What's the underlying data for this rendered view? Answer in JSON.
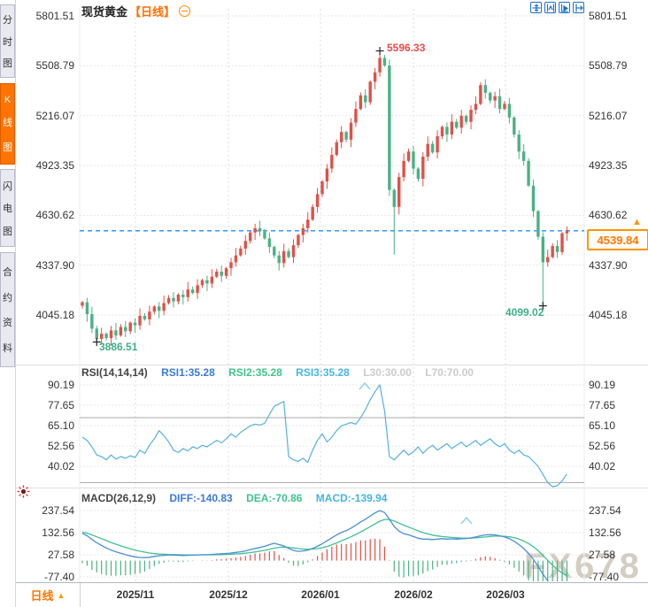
{
  "window": {
    "title_symbol": "现货黄金",
    "title_period": "【日线】"
  },
  "sidebar": {
    "tabs": [
      {
        "id": "time-chart",
        "label": "分时图",
        "active": false
      },
      {
        "id": "kline-chart",
        "label": "K线图",
        "active": true
      },
      {
        "id": "lightning-chart",
        "label": "闪电图",
        "active": false
      },
      {
        "id": "contract-info",
        "label": "合约资料",
        "active": false
      }
    ]
  },
  "toolbar": {
    "icons": [
      {
        "name": "pan-tool-icon"
      },
      {
        "name": "y-axis-scale-icon"
      },
      {
        "name": "x-axis-scale-icon"
      },
      {
        "name": "jump-to-latest-icon"
      }
    ]
  },
  "icons": {
    "up_triangle": "▲"
  },
  "price_pane": {
    "y_axis": [
      "5801.51",
      "5508.79",
      "5216.07",
      "4923.35",
      "4630.62",
      "4337.90",
      "4045.18"
    ],
    "high_annotation": "5596.33",
    "low_annotation": "4099.02",
    "early_low_annotation": "3886.51",
    "current_price": "4539.84"
  },
  "rsi_pane": {
    "label": "RSI(14,14,14)",
    "rsi1_label": "RSI1:35.28",
    "rsi2_label": "RSI2:35.28",
    "rsi3_label": "RSI3:35.28",
    "l30_label": "L30:30.00",
    "l70_label": "L70:70.00",
    "y_axis": [
      "90.19",
      "77.65",
      "65.10",
      "52.56",
      "40.02"
    ]
  },
  "macd_pane": {
    "label": "MACD(26,12,9)",
    "diff_label": "DIFF:-140.83",
    "dea_label": "DEA:-70.86",
    "macd_label": "MACD:-139.94",
    "y_axis": [
      "237.54",
      "132.56",
      "27.58",
      "-77.40"
    ]
  },
  "x_axis": {
    "period_button": "日线",
    "dates": [
      "2025/11",
      "2025/12",
      "2026/01",
      "2026/02",
      "2026/03"
    ]
  },
  "watermark": "FX678",
  "colors": {
    "accent_orange": "#ff7300",
    "up_red": "#df5148",
    "down_green": "#4bb185",
    "diff_blue": "#4a8fd4",
    "dea_green": "#3ec28f",
    "rsi_line": "#56b0e0",
    "current_line_blue": "#1f8fff",
    "annotation_red": "#e64c4c",
    "annotation_green": "#3fae87",
    "grid_h": "#e7e7e7",
    "grid_v": "#e6d9d9",
    "level_line": "#a8a8a8"
  },
  "chart_data": {
    "type": "candlestick",
    "symbol": "现货黄金",
    "period": "日线",
    "price_axis_values": [
      5801.51,
      5508.79,
      5216.07,
      4923.35,
      4630.62,
      4337.9,
      4045.18
    ],
    "x_tick_dates": [
      "2025/11",
      "2025/12",
      "2026/01",
      "2026/02",
      "2026/03"
    ],
    "current_price": 4539.84,
    "first_open": 4100,
    "closes": [
      4120,
      4050,
      3965,
      3905,
      3935,
      3910,
      3955,
      3925,
      3975,
      3950,
      4000,
      3985,
      4040,
      4020,
      4065,
      4095,
      4070,
      4115,
      4145,
      4125,
      4165,
      4150,
      4195,
      4175,
      4220,
      4250,
      4230,
      4270,
      4300,
      4275,
      4320,
      4355,
      4395,
      4435,
      4480,
      4530,
      4555,
      4535,
      4495,
      4445,
      4395,
      4350,
      4420,
      4385,
      4455,
      4515,
      4555,
      4605,
      4680,
      4755,
      4830,
      4905,
      4985,
      5060,
      5120,
      5075,
      5175,
      5255,
      5335,
      5295,
      5415,
      5470,
      5555,
      5510,
      4780,
      4680,
      4855,
      4950,
      5005,
      4905,
      4845,
      4975,
      5050,
      5000,
      5095,
      5150,
      5105,
      5180,
      5145,
      5215,
      5180,
      5250,
      5285,
      5395,
      5350,
      5305,
      5330,
      5255,
      5285,
      5205,
      5105,
      5005,
      4950,
      4805,
      4655,
      4505,
      4355,
      4385,
      4450,
      4415,
      4525,
      4539.84
    ],
    "wick_overrides": {
      "3": {
        "low": 3886.51
      },
      "62": {
        "high": 5596.33
      },
      "65": {
        "low": 4400
      },
      "96": {
        "low": 4099.02
      }
    },
    "annotations": [
      {
        "index": 3,
        "value": 3886.51,
        "type": "low"
      },
      {
        "index": 62,
        "value": 5596.33,
        "type": "high"
      },
      {
        "index": 96,
        "value": 4099.02,
        "type": "low"
      }
    ],
    "rsi": {
      "axis": [
        90.19,
        77.65,
        65.1,
        52.56,
        40.02
      ],
      "levels": [
        70,
        30
      ],
      "current": {
        "rsi1": 35.28,
        "rsi2": 35.28,
        "rsi3": 35.28
      },
      "values": [
        58,
        56,
        52,
        47,
        46,
        44,
        47,
        44.5,
        46,
        45,
        46.5,
        45.5,
        50,
        48,
        53,
        57,
        62,
        59,
        55,
        50,
        48.5,
        51,
        49.5,
        52,
        51,
        53,
        52,
        54,
        56,
        54.5,
        57,
        60,
        58,
        61,
        63,
        65,
        66,
        65.5,
        66.5,
        72,
        77,
        78.5,
        80,
        46,
        44,
        43,
        45,
        42.5,
        50,
        56,
        60,
        55,
        58,
        62,
        65,
        66,
        67,
        66,
        70,
        75,
        81,
        86,
        90.19,
        74,
        46,
        44,
        47,
        50,
        47,
        49,
        52,
        48,
        51,
        53,
        50,
        52,
        54,
        51,
        53,
        55,
        52,
        54,
        56,
        53,
        55,
        57,
        54,
        52,
        54,
        50,
        48,
        50,
        47,
        46,
        43,
        40,
        35,
        30,
        27.5,
        28,
        31,
        35.28
      ]
    },
    "macd": {
      "axis": [
        237.54,
        132.56,
        27.58,
        -77.4
      ],
      "current": {
        "diff": -140.83,
        "dea": -70.86,
        "macd": -139.94
      },
      "diff": [
        130,
        118,
        100,
        85,
        72,
        60,
        50,
        42,
        35,
        28,
        22,
        18,
        15,
        14,
        16,
        20,
        23,
        25,
        27,
        26,
        25,
        24,
        25,
        26,
        27,
        28,
        28,
        29,
        31,
        32,
        34,
        36,
        39,
        42,
        46,
        52,
        58,
        62,
        68,
        76,
        82,
        76,
        70,
        58,
        48,
        44,
        46,
        50,
        58,
        68,
        80,
        94,
        108,
        122,
        134,
        142,
        154,
        168,
        184,
        196,
        212,
        226,
        237.54,
        228,
        196,
        162,
        140,
        128,
        122,
        114,
        106,
        102,
        102,
        100,
        102,
        104,
        102,
        103,
        102,
        104,
        105,
        108,
        112,
        118,
        122,
        123,
        122,
        118,
        112,
        104,
        92,
        76,
        58,
        34,
        6,
        -28,
        -64,
        -96,
        -118,
        -132,
        -140,
        -140.83
      ],
      "dea": [
        136,
        130,
        122,
        113,
        104,
        95,
        86,
        78,
        70,
        63,
        56,
        50,
        45,
        40,
        36,
        33,
        31,
        30,
        29,
        28.5,
        28,
        27.5,
        27,
        27,
        27,
        27.2,
        27.4,
        27.6,
        28,
        28.6,
        29.4,
        30.4,
        31.6,
        33,
        35,
        38,
        41,
        45,
        49,
        54,
        59,
        63,
        64,
        63,
        60,
        57,
        55,
        54,
        55,
        57,
        61,
        67,
        75,
        84,
        94,
        103,
        113,
        124,
        136,
        148,
        161,
        174,
        187,
        195,
        195,
        188,
        178,
        168,
        159,
        150,
        141,
        133,
        127,
        121,
        117,
        114,
        112,
        110,
        108,
        107,
        107,
        107,
        108,
        110,
        112,
        114,
        116,
        116,
        115,
        113,
        109,
        102,
        93,
        81,
        66,
        47,
        25,
        1,
        -22,
        -42,
        -59,
        -70.86
      ]
    }
  }
}
